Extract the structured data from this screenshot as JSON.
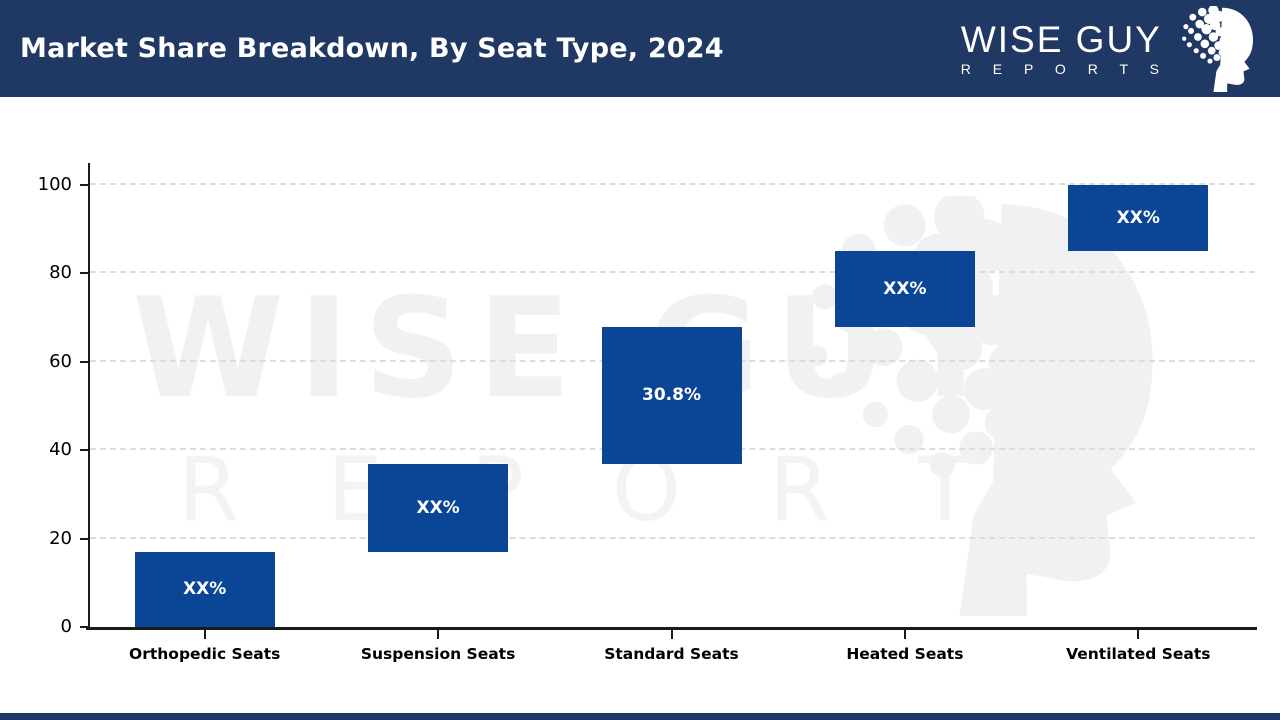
{
  "header": {
    "title": "Market Share Breakdown, By Seat Type, 2024",
    "bg_color": "#1F3864",
    "logo": {
      "wordmark": "WISE GUY",
      "subtext": "R E P O R T S"
    }
  },
  "watermark": {
    "line1": "WISE GUY",
    "line2": "R E P O R T S"
  },
  "chart_data": {
    "type": "bar",
    "subtype": "floating-waterfall",
    "title": "Market Share Breakdown, By Seat Type, 2024",
    "categories": [
      "Orthopedic Seats",
      "Suspension Seats",
      "Standard Seats",
      "Heated Seats",
      "Ventilated Seats"
    ],
    "segments": [
      {
        "category": "Orthopedic Seats",
        "start": 0,
        "end": 17,
        "label": "XX%"
      },
      {
        "category": "Suspension Seats",
        "start": 17,
        "end": 37,
        "label": "XX%"
      },
      {
        "category": "Standard Seats",
        "start": 37,
        "end": 67.8,
        "label": "30.8%"
      },
      {
        "category": "Heated Seats",
        "start": 67.8,
        "end": 85.2,
        "label": "XX%"
      },
      {
        "category": "Ventilated Seats",
        "start": 85.2,
        "end": 100,
        "label": "XX%"
      }
    ],
    "ylim": [
      0,
      105
    ],
    "yticks": [
      0,
      20,
      40,
      60,
      80,
      100
    ],
    "grid": "horizontal-dashed",
    "gridline_color": "#dcdcdc",
    "bar_color": "#0B4596",
    "bar_label_color": "#ffffff",
    "axis_color": "#1a1a1a",
    "legend": null
  },
  "footer": {
    "bg_color": "#1F3864"
  }
}
